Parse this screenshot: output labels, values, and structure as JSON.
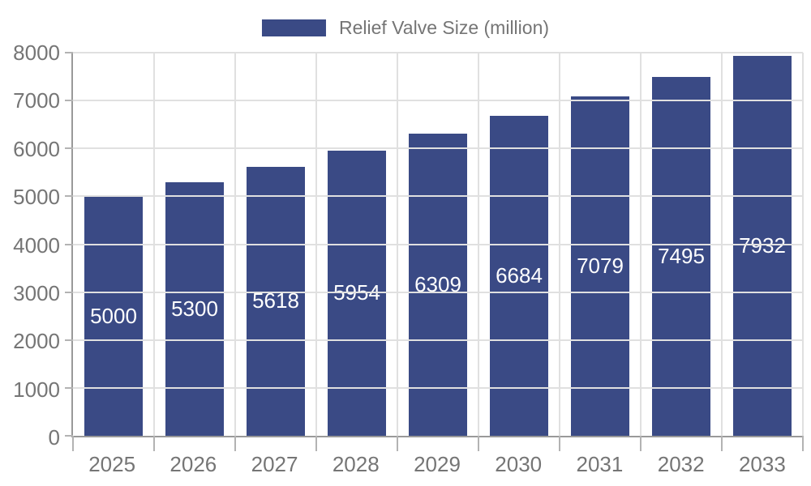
{
  "chart_data": {
    "type": "bar",
    "legend": "Relief Valve Size (million)",
    "legend_position": "top-center",
    "categories": [
      "2025",
      "2026",
      "2027",
      "2028",
      "2029",
      "2030",
      "2031",
      "2032",
      "2033"
    ],
    "series": [
      {
        "name": "Relief Valve Size (million)",
        "values": [
          5000,
          5300,
          5618,
          5954,
          6309,
          6684,
          7079,
          7495,
          7932
        ]
      }
    ],
    "data_labels": [
      "5000",
      "5300",
      "5618",
      "5954",
      "6309",
      "6684",
      "7079",
      "7495",
      "7932"
    ],
    "data_label_position": "inside-center",
    "xlabel": "",
    "ylabel": "",
    "ylim": [
      0,
      8000
    ],
    "y_ticks": [
      0,
      1000,
      2000,
      3000,
      4000,
      5000,
      6000,
      7000,
      8000
    ],
    "grid": true,
    "style": {
      "background": "#ffffff",
      "bar_color": "#3A4A85",
      "bar_label_color": "#ffffff",
      "grid_color": "#e0e0e0",
      "axis_color": "#999999",
      "tick_color": "#b3b3b3",
      "tick_label_color": "#757575",
      "legend_text_color": "#757575"
    }
  }
}
